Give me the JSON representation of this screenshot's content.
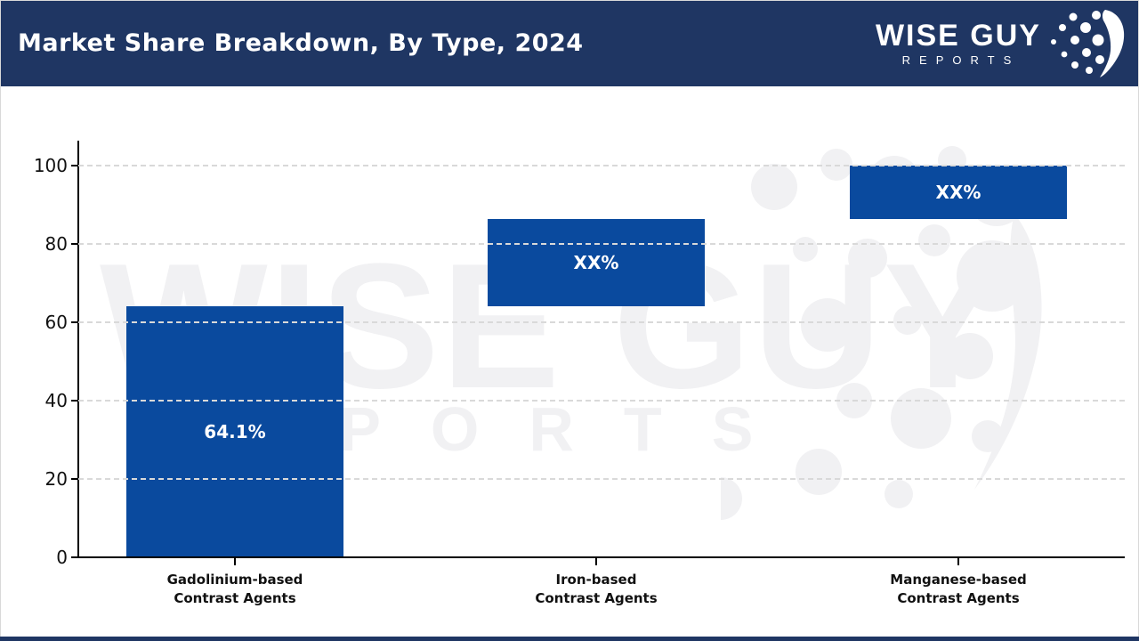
{
  "header": {
    "title": "Market Share Breakdown, By Type, 2024",
    "logo": {
      "line1": "WISE GUY",
      "line2": "REPORTS"
    }
  },
  "watermark": {
    "line1": "WISE GUY",
    "line2": "REPORTS"
  },
  "colors": {
    "header_bg": "#1f3663",
    "bar": "#0a4a9e",
    "grid": "#d9d9d9",
    "axis": "#000000",
    "watermark": "#f1f1f3"
  },
  "chart_data": {
    "type": "bar",
    "subtype": "waterfall",
    "title": "Market Share Breakdown, By Type, 2024",
    "categories": [
      {
        "line1": "Gadolinium-based",
        "line2": "Contrast Agents"
      },
      {
        "line1": "Iron-based",
        "line2": "Contrast Agents"
      },
      {
        "line1": "Manganese-based",
        "line2": "Contrast Agents"
      }
    ],
    "segments": [
      {
        "start": 0,
        "end": 64.1,
        "label": "64.1%"
      },
      {
        "start": 64.1,
        "end": 86.4,
        "label": "XX%"
      },
      {
        "start": 86.4,
        "end": 100,
        "label": "XX%"
      }
    ],
    "ylim": [
      0,
      106
    ],
    "yticks": [
      0,
      20,
      40,
      60,
      80,
      100
    ],
    "grid": "dashed-horizontal",
    "legend": "none",
    "bar_color": "#0a4a9e"
  }
}
